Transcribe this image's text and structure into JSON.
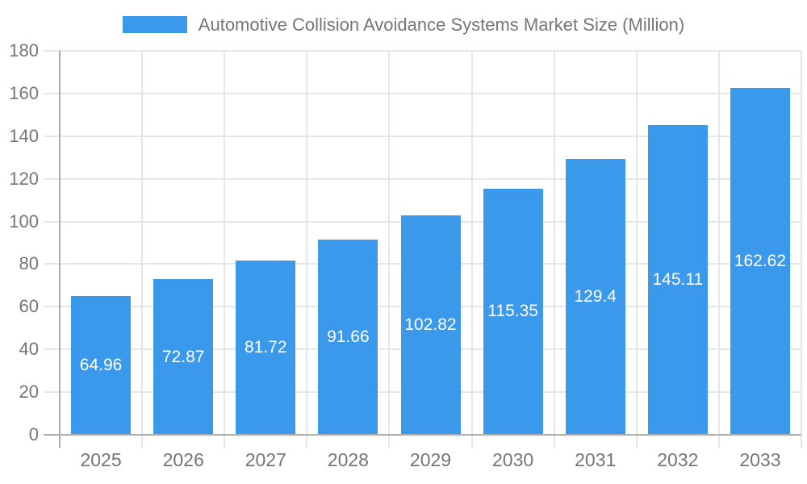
{
  "chart_data": {
    "type": "bar",
    "title": "Automotive Collision Avoidance Systems Market Size (Million)",
    "categories": [
      "2025",
      "2026",
      "2027",
      "2028",
      "2029",
      "2030",
      "2031",
      "2032",
      "2033"
    ],
    "values": [
      64.96,
      72.87,
      81.72,
      91.66,
      102.82,
      115.35,
      129.4,
      145.11,
      162.62
    ],
    "value_labels": [
      "64.96",
      "72.87",
      "81.72",
      "91.66",
      "102.82",
      "115.35",
      "129.4",
      "145.11",
      "162.62"
    ],
    "xlabel": "",
    "ylabel": "",
    "ylim": [
      0,
      180
    ],
    "ytick_interval": 20,
    "ytick_labels": [
      "0",
      "20",
      "40",
      "60",
      "80",
      "100",
      "120",
      "140",
      "160",
      "180"
    ],
    "grid": true,
    "legend_position": "top-center",
    "colors": {
      "bar": "#3B99EC",
      "bar_value_label": "#FFFFFF",
      "axis_line": "#ADADAD",
      "grid_line": "#E6E6E6",
      "axis_text": "#757575",
      "legend_text": "#757575",
      "background": "#FFFFFF"
    }
  }
}
